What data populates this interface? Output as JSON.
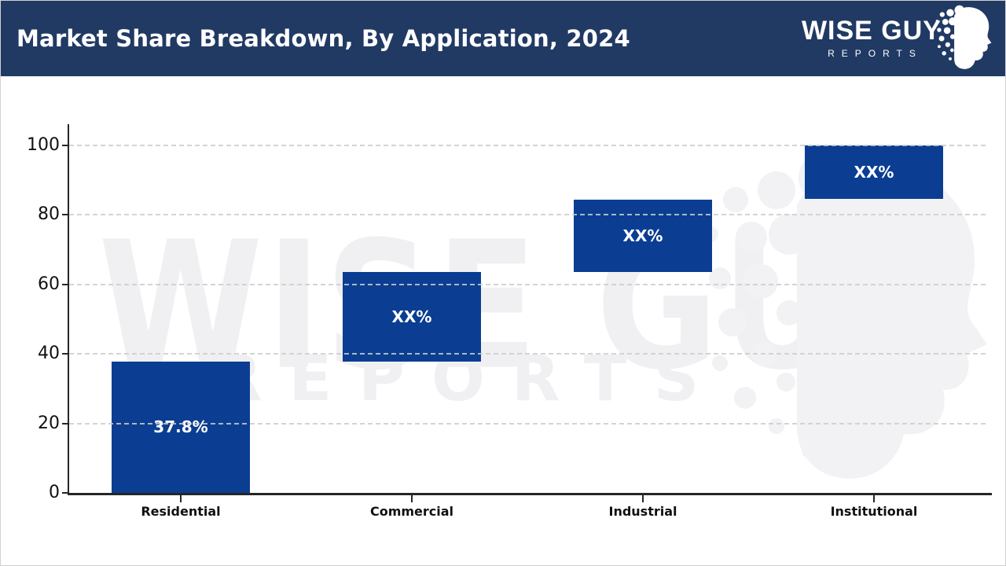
{
  "header": {
    "title": "Market Share Breakdown, By Application, 2024"
  },
  "brand": {
    "line1": "WISE GUY",
    "line2": "REPORTS",
    "head_icon": "dotted-profile-head-icon"
  },
  "watermark": {
    "line1": "WISE GUY",
    "line2": "REPORTS"
  },
  "chart_data": {
    "type": "bar",
    "variant": "waterfall",
    "title": "Market Share Breakdown, By Application, 2024",
    "categories": [
      "Residential",
      "Commercial",
      "Industrial",
      "Institutional"
    ],
    "segments": [
      {
        "category": "Residential",
        "start": 0,
        "end": 37.8,
        "label": "37.8%"
      },
      {
        "category": "Commercial",
        "start": 37.8,
        "end": 63.5,
        "label": "XX%"
      },
      {
        "category": "Industrial",
        "start": 63.5,
        "end": 84.3,
        "label": "XX%"
      },
      {
        "category": "Institutional",
        "start": 84.5,
        "end": 100,
        "label": "XX%"
      }
    ],
    "yticks": [
      0,
      20,
      40,
      60,
      80,
      100
    ],
    "ylim": [
      0,
      106
    ],
    "xlabel": "",
    "ylabel": "",
    "grid": "horizontal-dashed-above-bars",
    "legend": "none",
    "bar_color": "#0b3e92",
    "bar_label_color": "#ffffff"
  },
  "colors": {
    "header_bg": "#213a64",
    "bar": "#0b3e92",
    "axis": "#262626",
    "grid": "#cdcdcd",
    "watermark": "#f0f0f3",
    "tick_label": "#111111",
    "page_border": "#d2d2d2"
  }
}
